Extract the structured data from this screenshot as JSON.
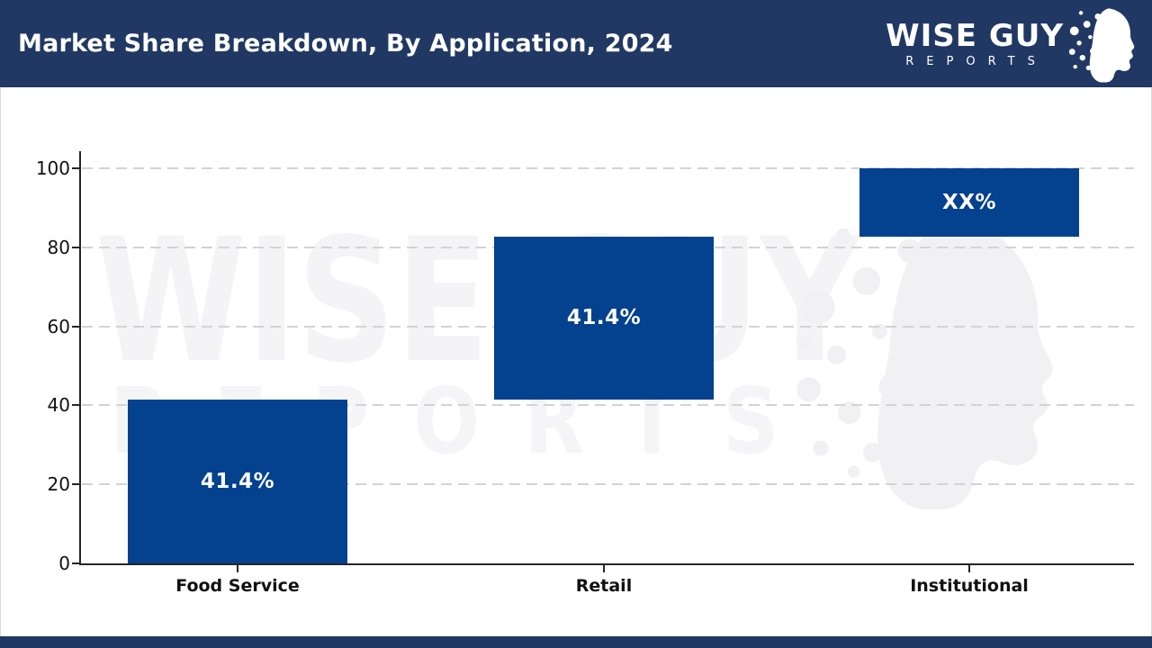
{
  "header": {
    "title": "Market Share Breakdown, By Application, 2024",
    "logo_line1": "WISE GUY",
    "logo_line2": "REPORTS",
    "bg_color": "#203863"
  },
  "watermark": {
    "line1": "WISE GUY",
    "line2": "REPORTS"
  },
  "chart_data": {
    "type": "bar",
    "variant": "waterfall",
    "title": "Market Share Breakdown, By Application, 2024",
    "categories": [
      "Food Service",
      "Retail",
      "Institutional"
    ],
    "series": [
      {
        "name": "Market share",
        "segments": [
          {
            "category": "Food Service",
            "start": 0,
            "end": 41.4,
            "label": "41.4%"
          },
          {
            "category": "Retail",
            "start": 41.4,
            "end": 82.8,
            "label": "41.4%"
          },
          {
            "category": "Institutional",
            "start": 82.8,
            "end": 100,
            "label": "XX%"
          }
        ]
      }
    ],
    "xlabel": "",
    "ylabel": "",
    "ylim": [
      0,
      104
    ],
    "yticks": [
      0,
      20,
      40,
      60,
      80,
      100
    ],
    "grid": "horizontal-dashed",
    "legend_position": "none",
    "bar_color": "#04418f",
    "bar_label_color": "#ffffff",
    "axis_color": "#262626",
    "grid_color": "#d3d3d3"
  }
}
